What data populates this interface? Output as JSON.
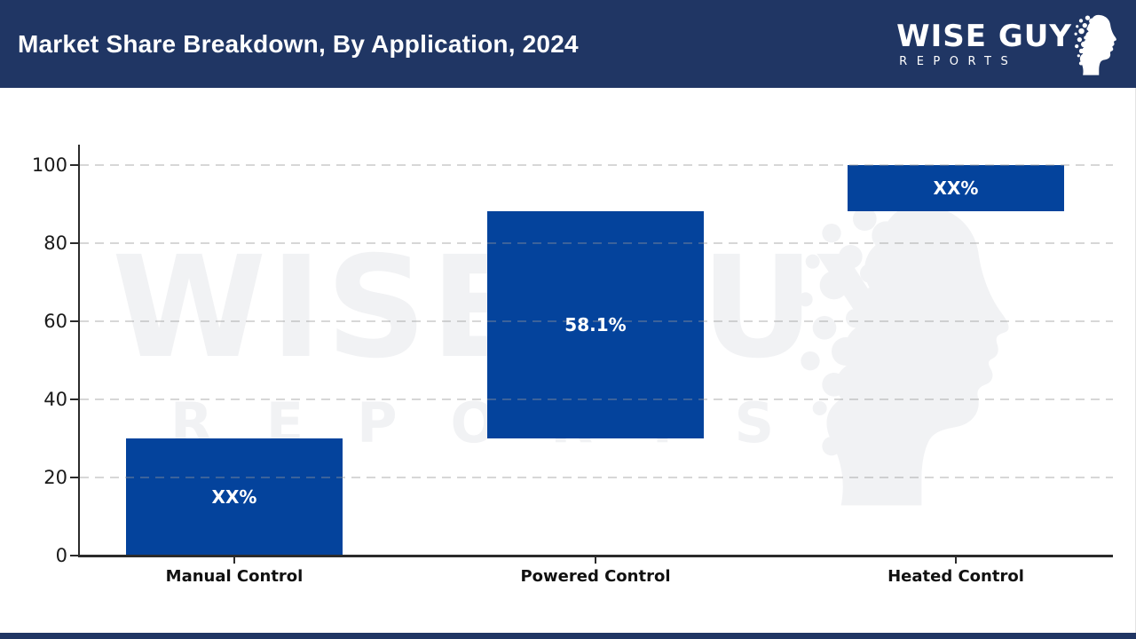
{
  "header": {
    "title": "Market Share Breakdown, By Application, 2024",
    "logo": {
      "line1": "WISE GUY",
      "line2": "REPORTS"
    }
  },
  "watermark": {
    "line1": "WISE GUY",
    "line2": "REPORTS"
  },
  "chart_data": {
    "type": "bar",
    "subtype": "floating-segments",
    "title": "Market Share Breakdown, By Application, 2024",
    "categories": [
      "Manual Control",
      "Powered Control",
      "Heated Control"
    ],
    "segments": [
      {
        "category": "Manual Control",
        "start": 0,
        "end": 30,
        "label": "XX%"
      },
      {
        "category": "Powered Control",
        "start": 30,
        "end": 88.1,
        "label": "58.1%"
      },
      {
        "category": "Heated Control",
        "start": 88.1,
        "end": 100,
        "label": "XX%"
      }
    ],
    "ylim": [
      0,
      100
    ],
    "yticks": [
      0,
      20,
      40,
      60,
      80,
      100
    ],
    "grid": "dashed-horizontal",
    "legend": "none",
    "bar_color": "#04439c",
    "bar_label_color": "#ffffff"
  },
  "colors": {
    "header_bg": "#203664",
    "footer_bg": "#203664",
    "bar_blue": "#04439c",
    "watermark_gray": "#f1f2f4",
    "axis_dark": "#2b2b2b"
  }
}
